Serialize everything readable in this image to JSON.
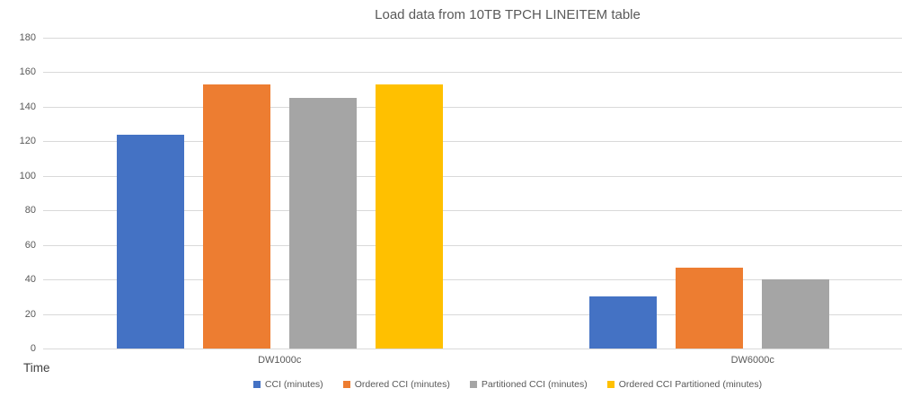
{
  "chart_data": {
    "type": "bar",
    "title": "Load data from 10TB TPCH LINEITEM table",
    "categories": [
      "DW1000c",
      "DW6000c"
    ],
    "series": [
      {
        "name": "CCI (minutes)",
        "color": "#4472C4",
        "values": [
          124,
          30
        ]
      },
      {
        "name": "Ordered CCI (minutes)",
        "color": "#ED7D31",
        "values": [
          153,
          47
        ]
      },
      {
        "name": "Partitioned CCI (minutes)",
        "color": "#A5A5A5",
        "values": [
          145,
          40
        ]
      },
      {
        "name": "Ordered CCI Partitioned (minutes)",
        "color": "#FFC000",
        "values": [
          153,
          null
        ]
      }
    ],
    "xlabel": "",
    "ylabel": "Time",
    "ylim": [
      0,
      180
    ],
    "ytick_step": 20,
    "yticks": [
      0,
      20,
      40,
      60,
      80,
      100,
      120,
      140,
      160,
      180
    ],
    "grid": true,
    "legend_position": "bottom",
    "colors": {
      "gridline": "#D9D9D9",
      "axis_text": "#595959",
      "title_text": "#595959",
      "background": "#FFFFFF"
    }
  }
}
